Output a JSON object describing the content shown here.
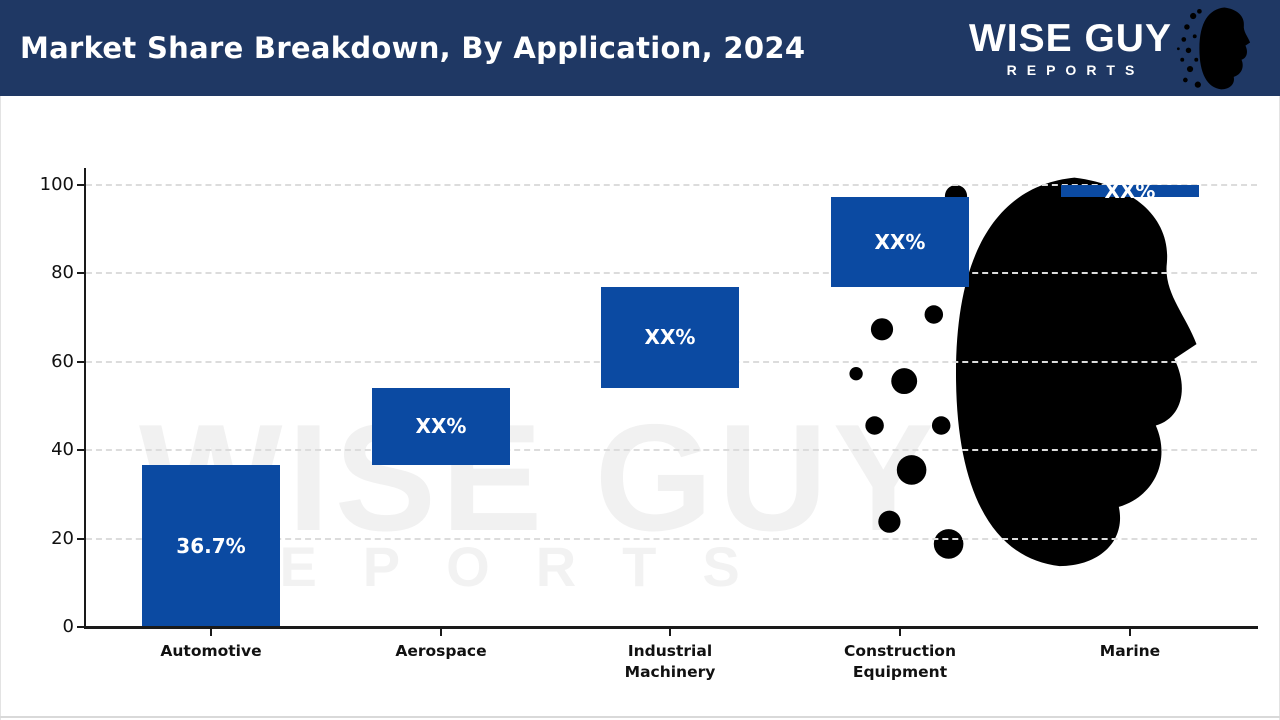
{
  "header": {
    "title": "Market Share Breakdown, By Application, 2024",
    "logo": {
      "line1": "WISE GUY",
      "line2": "REPORTS"
    }
  },
  "watermark": {
    "line1": "WISE GUY",
    "line2": "REPORTS"
  },
  "chart_data": {
    "type": "bar",
    "subtype": "waterfall",
    "title": "Market Share Breakdown, By Application, 2024",
    "categories": [
      "Automotive",
      "Aerospace",
      "Industrial Machinery",
      "Construction Equipment",
      "Marine"
    ],
    "segments": [
      {
        "category": "Automotive",
        "start": 0,
        "end": 36.7,
        "label": "36.7%"
      },
      {
        "category": "Aerospace",
        "start": 36.7,
        "end": 54.1,
        "label": "XX%"
      },
      {
        "category": "Industrial Machinery",
        "start": 54.1,
        "end": 77.0,
        "label": "XX%"
      },
      {
        "category": "Construction Equipment",
        "start": 77.0,
        "end": 97.3,
        "label": "XX%"
      },
      {
        "category": "Marine",
        "start": 97.3,
        "end": 100.0,
        "label": "XX%"
      }
    ],
    "yticks": [
      0,
      20,
      40,
      60,
      80,
      100
    ],
    "ylim": [
      0,
      104
    ],
    "grid": "horizontal-dashed",
    "legend": "none",
    "bar_color": "#0b4aa2",
    "bar_label_color": "#ffffff"
  },
  "colors": {
    "header_bg": "#1f3864",
    "bar": "#0b4aa2",
    "grid": "#dcdcdc",
    "axis": "#1a1a1a",
    "watermark": "#f1f1f1"
  }
}
